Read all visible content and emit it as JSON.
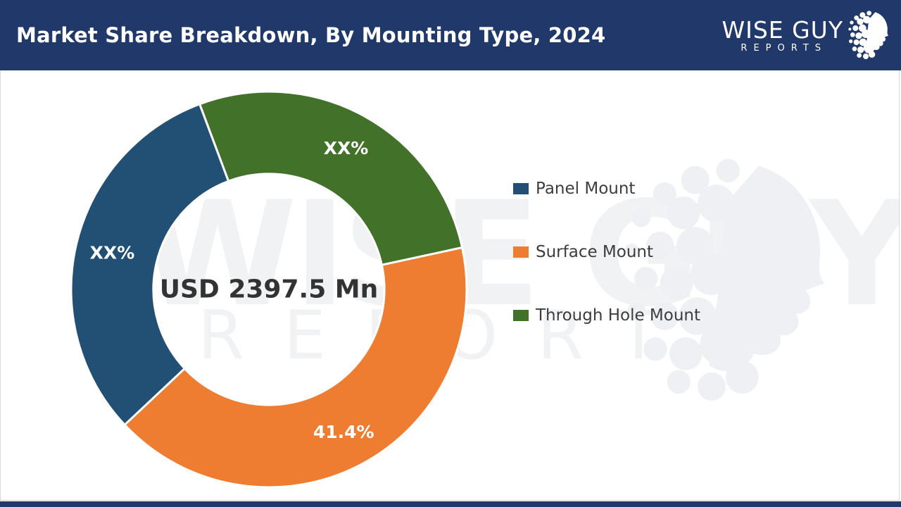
{
  "header": {
    "title": "Market Share Breakdown, By Mounting Type, 2024"
  },
  "logo": {
    "line1": "WISE GUY",
    "line2": "REPORTS"
  },
  "watermark": {
    "line1": "WISE GUY",
    "line2": "REPORTS"
  },
  "colors": {
    "brand_navy": "#20396A",
    "panel_mount_blue": "#224F74",
    "surface_mount_orange": "#EE7D31",
    "through_hole_green": "#427229"
  },
  "chart_data": {
    "type": "pie",
    "subtype": "donut",
    "title": "Market Share Breakdown, By Mounting Type, 2024",
    "center_label": "USD 2397.5 Mn",
    "units": "USD Mn",
    "legend_position": "right",
    "start_angle_deg": -20.5,
    "clockwise": true,
    "inner_radius_ratio": 0.584,
    "segments": [
      {
        "name": "Through Hole Mount",
        "display_label": "XX%",
        "share_pct_est": 27.3,
        "color": "#427229"
      },
      {
        "name": "Surface Mount",
        "display_label": "41.4%",
        "share_pct_est": 41.4,
        "color": "#EE7D31"
      },
      {
        "name": "Panel Mount",
        "display_label": "XX%",
        "share_pct_est": 31.3,
        "color": "#224F74"
      }
    ]
  },
  "legend": {
    "items": [
      {
        "label": "Panel Mount",
        "color": "#224F74"
      },
      {
        "label": "Surface Mount",
        "color": "#EE7D31"
      },
      {
        "label": "Through Hole Mount",
        "color": "#427229"
      }
    ]
  }
}
